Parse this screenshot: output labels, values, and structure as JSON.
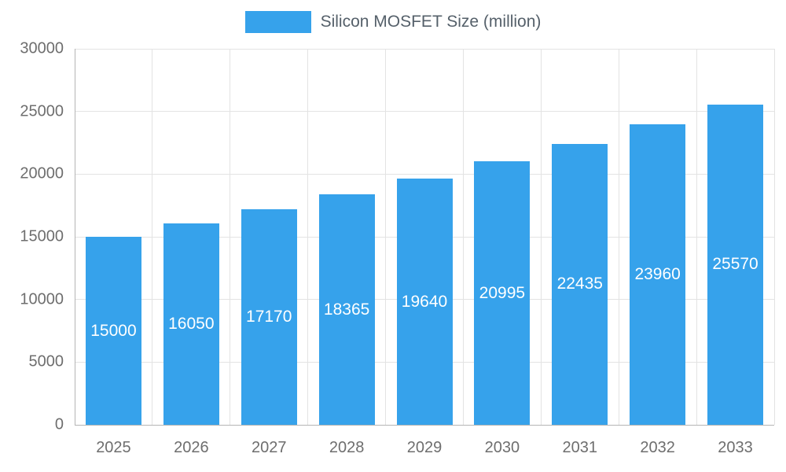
{
  "chart_data": {
    "type": "bar",
    "title": "Silicon MOSFET Size (million)",
    "categories": [
      "2025",
      "2026",
      "2027",
      "2028",
      "2029",
      "2030",
      "2031",
      "2032",
      "2033"
    ],
    "values": [
      15000,
      16050,
      17170,
      18365,
      19640,
      20995,
      22435,
      23960,
      25570
    ],
    "xlabel": "",
    "ylabel": "",
    "ylim": [
      0,
      30000
    ],
    "ytick_step": 5000,
    "ytick_labels": [
      "0",
      "5000",
      "10000",
      "15000",
      "20000",
      "25000",
      "30000"
    ],
    "grid": true,
    "legend_position": "top",
    "bar_color": "#36A2EB",
    "bar_value_label_color": "#ffffff",
    "axis_text_color": "#6e6e6e",
    "gridline_color": "#e3e3e3",
    "axis_line_color": "#b5b5b5"
  }
}
